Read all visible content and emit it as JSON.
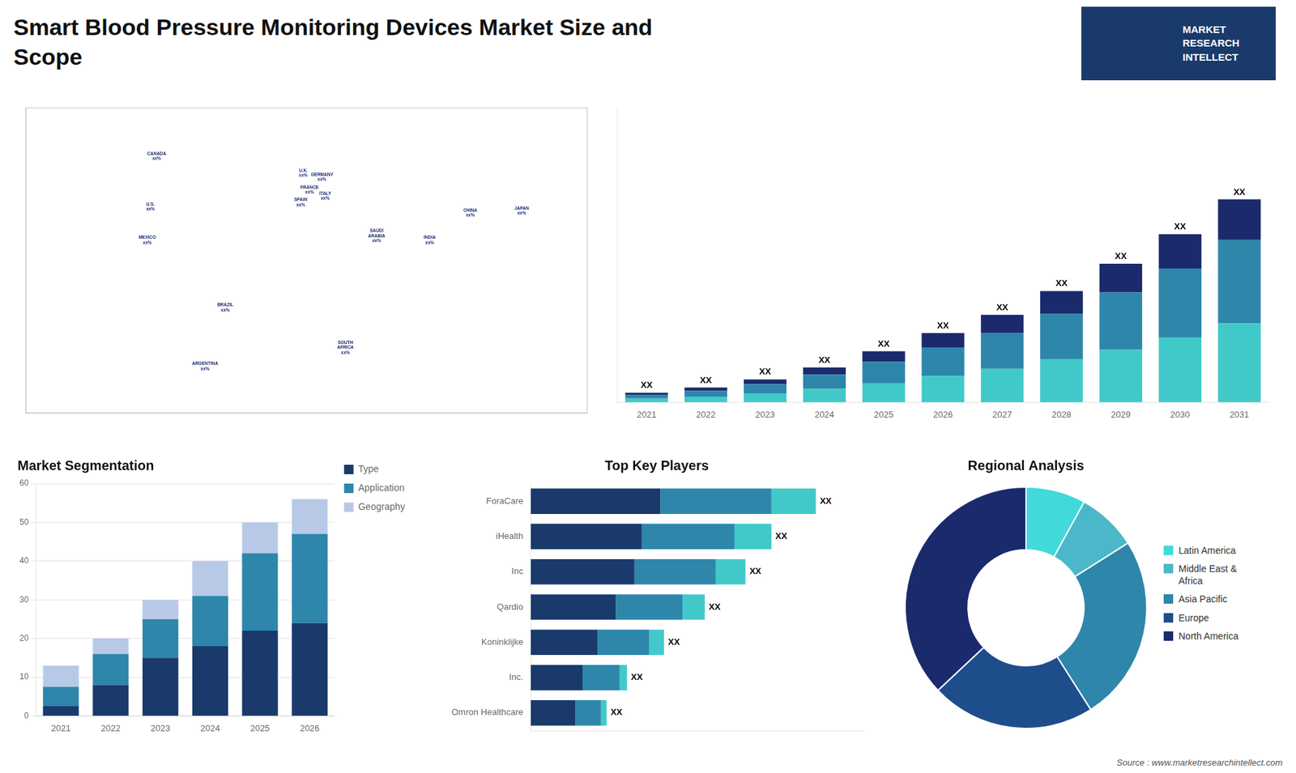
{
  "title": "Smart Blood Pressure Monitoring Devices Market Size and\nScope",
  "annotations": [
    "MARKET",
    "RESEARCH",
    "INTELLECT",
    "Source : www.marketresearchintellect.com"
  ],
  "chart_data": [
    {
      "type": "scatter",
      "x": [
        -96,
        -100,
        -102,
        -52,
        -65,
        -2,
        2,
        10,
        -3.7,
        12,
        105,
        138,
        79,
        45,
        25
      ],
      "values": [
        62,
        38,
        22,
        -10,
        -38,
        54,
        46,
        52,
        40,
        43,
        35,
        36,
        22,
        24,
        -29
      ],
      "value_labels": [
        "CANADA\nxx%",
        "U.S.\nxx%",
        "MEXICO\nxx%",
        "BRAZIL\nxx%",
        "ARGENTINA\nxx%",
        "U.K.\nxx%",
        "FRANCE\nxx%",
        "GERMANY\nxx%",
        "SPAIN\nxx%",
        "ITALY\nxx%",
        "CHINA\nxx%",
        "JAPAN\nxx%",
        "INDIA\nxx%",
        "SAUDI\nARABIA\nxx%",
        "SOUTH\nAFRICA\nxx%"
      ],
      "xlim": [
        -180,
        180
      ],
      "ylim": [
        -60,
        85
      ],
      "xticks": [],
      "yticks": [],
      "tick_labels": false,
      "grid": false
    },
    {
      "type": "bar",
      "stacked": true,
      "categories": [
        "2021",
        "2022",
        "2023",
        "2024",
        "2025",
        "2026",
        "2027",
        "2028",
        "2029",
        "2030",
        "2031"
      ],
      "series": [
        {
          "color": "#41c9c9",
          "values": [
            0.8,
            1.2,
            1.8,
            2.8,
            4.0,
            5.5,
            7.0,
            9.0,
            11.0,
            13.5,
            16.5
          ]
        },
        {
          "color": "#2e86ab",
          "values": [
            0.8,
            1.2,
            2.0,
            3.0,
            4.5,
            6.0,
            7.5,
            9.5,
            12.0,
            14.5,
            17.5
          ]
        },
        {
          "color": "#1a2a6c",
          "values": [
            0.4,
            0.7,
            1.0,
            1.5,
            2.2,
            3.0,
            3.8,
            4.8,
            6.0,
            7.2,
            8.5
          ],
          "value_labels": [
            "XX",
            "XX",
            "XX",
            "XX",
            "XX",
            "XX",
            "XX",
            "XX",
            "XX",
            "XX",
            "XX"
          ]
        }
      ],
      "ylim": [
        0,
        61.625
      ],
      "yticks": [],
      "tick_labels": "x",
      "grid": false
    },
    {
      "type": "bar",
      "stacked": true,
      "title": "Market Segmentation",
      "categories": [
        "2021",
        "2022",
        "2023",
        "2024",
        "2025",
        "2026"
      ],
      "series": [
        {
          "name": "Type",
          "color": "#1a3a6c",
          "values": [
            2.5,
            8,
            15,
            18,
            22,
            24
          ]
        },
        {
          "name": "Application",
          "color": "#2e86ab",
          "values": [
            5,
            8,
            10,
            13,
            20,
            23
          ]
        },
        {
          "name": "Geography",
          "color": "#b8c9e8",
          "values": [
            5.5,
            4,
            5,
            9,
            8,
            9
          ]
        }
      ],
      "ylim": [
        0,
        60
      ],
      "yticks": [
        0,
        10,
        20,
        30,
        40,
        50,
        60
      ],
      "grid": true,
      "legend": "right"
    },
    {
      "type": "bar",
      "orientation": "horizontal",
      "stacked": true,
      "title": "Top Key Players",
      "categories": [
        "ForaCare",
        "iHealth",
        "Inc",
        "Qardio",
        "Koninklijke",
        "Inc.",
        "Omron Healthcare"
      ],
      "series": [
        {
          "color": "#1a3a6c",
          "values": [
            3.5,
            3.0,
            2.8,
            2.3,
            1.8,
            1.4,
            1.2
          ]
        },
        {
          "color": "#2e86ab",
          "values": [
            3.0,
            2.5,
            2.2,
            1.8,
            1.4,
            1.0,
            0.7
          ]
        },
        {
          "color": "#41c9c9",
          "values": [
            1.2,
            1.0,
            0.8,
            0.6,
            0.4,
            0.2,
            0.15
          ],
          "value_labels": [
            "XX",
            "XX",
            "XX",
            "XX",
            "XX",
            "XX",
            "XX"
          ]
        }
      ],
      "xlim": [
        0,
        9
      ],
      "xticks": [],
      "tick_labels": "y",
      "grid": false
    },
    {
      "type": "doughnut",
      "title": "Regional Analysis",
      "categories": [
        "Latin America",
        "Middle East &\nAfrica",
        "Asia Pacific",
        "Europe",
        "North America"
      ],
      "values": [
        8,
        8,
        25,
        22,
        37
      ],
      "colors": [
        "#41d9d9",
        "#4ab8c8",
        "#2e86ab",
        "#1e4d8c",
        "#1a2a6c"
      ],
      "legend": "right"
    }
  ]
}
